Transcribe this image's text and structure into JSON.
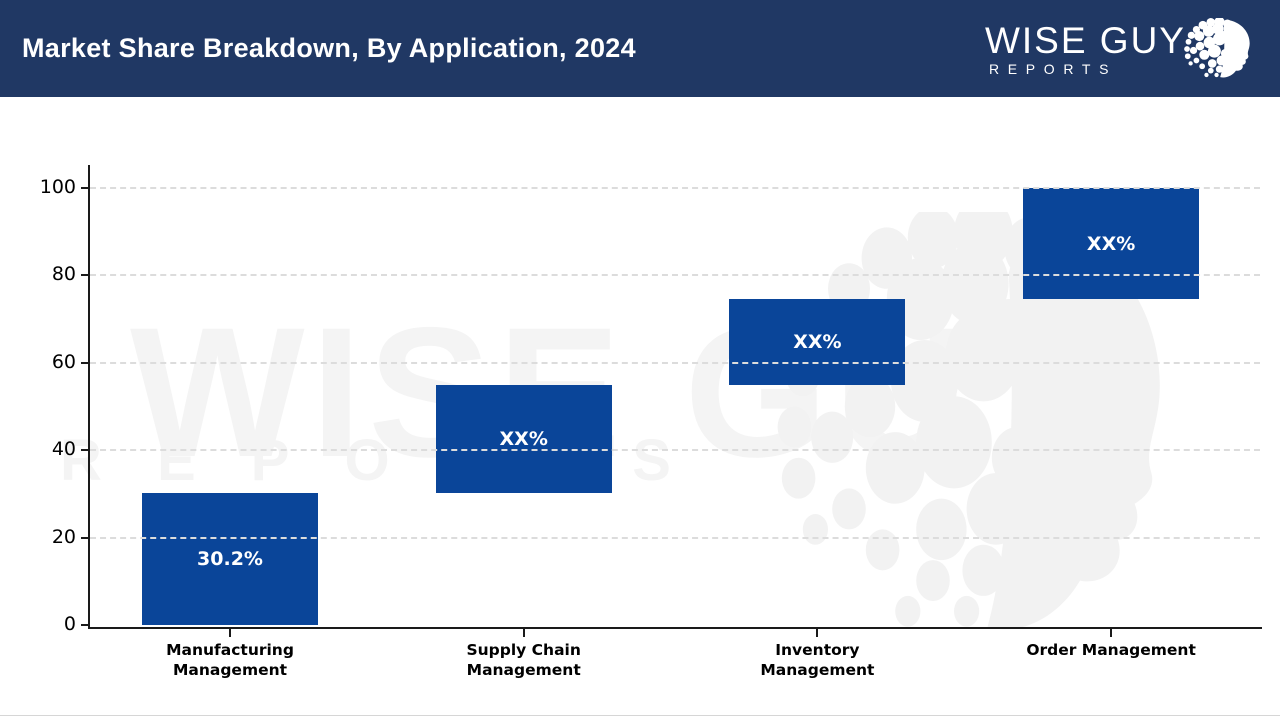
{
  "header": {
    "title": "Market Share Breakdown, By Application, 2024",
    "bg_color": "#203864",
    "logo": {
      "line1": "WISE GUY",
      "line2": "REPORTS",
      "icon": "dotted-face-profile-icon"
    }
  },
  "watermark": {
    "line1": "WISE GUY",
    "line2": "REPORTS",
    "icon": "dotted-face-profile-icon"
  },
  "chart_data": {
    "type": "bar",
    "subtype": "waterfall",
    "title": "Market Share Breakdown, By Application, 2024",
    "categories": [
      "Manufacturing Management",
      "Supply Chain Management",
      "Inventory Management",
      "Order Management"
    ],
    "category_lines": [
      [
        "Manufacturing",
        "Management"
      ],
      [
        "Supply Chain",
        "Management"
      ],
      [
        "Inventory",
        "Management"
      ],
      [
        "Order Management"
      ]
    ],
    "segments": [
      {
        "start": 0,
        "end": 30.2,
        "label": "30.2%"
      },
      {
        "start": 30.2,
        "end": 55.0,
        "label": "XX%"
      },
      {
        "start": 55.0,
        "end": 74.5,
        "label": "XX%"
      },
      {
        "start": 74.5,
        "end": 100.0,
        "label": "XX%"
      }
    ],
    "xlabel": "",
    "ylabel": "",
    "ylim": [
      0,
      100
    ],
    "yticks": [
      0,
      20,
      40,
      60,
      80,
      100
    ],
    "grid": true,
    "grid_style": "dashed",
    "legend": "none",
    "bar_color": "#0a4599",
    "bar_label_color": "#ffffff",
    "axis_color": "#1a1a1a",
    "tick_label_color": "#000000"
  },
  "footer": {
    "divider_color": "#d6d6d6"
  }
}
